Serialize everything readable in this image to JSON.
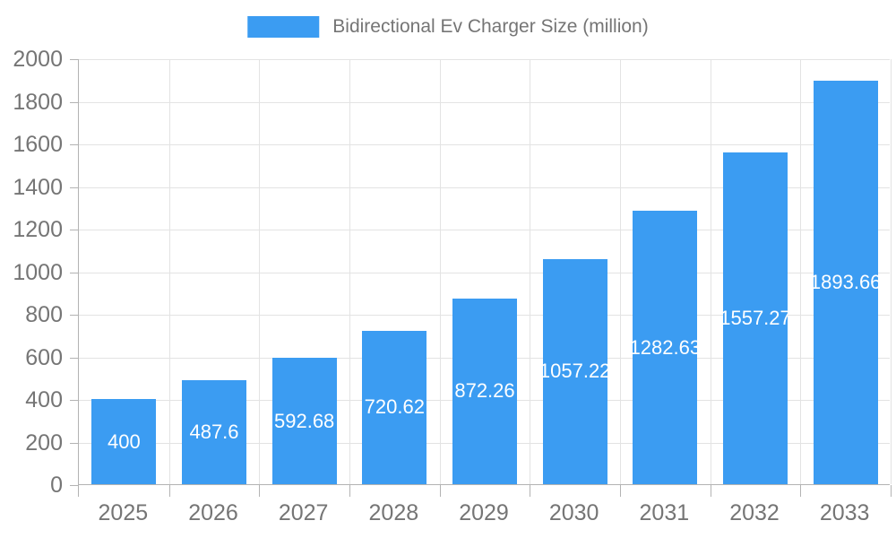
{
  "legend": {
    "label": "Bidirectional Ev Charger Size (million)"
  },
  "chart_data": {
    "type": "bar",
    "title": "",
    "legend_entries": [
      "Bidirectional Ev Charger Size (million)"
    ],
    "legend_position": "top",
    "categories": [
      "2025",
      "2026",
      "2027",
      "2028",
      "2029",
      "2030",
      "2031",
      "2032",
      "2033"
    ],
    "values": [
      400,
      487.6,
      592.68,
      720.62,
      872.26,
      1057.22,
      1282.63,
      1557.27,
      1893.66
    ],
    "value_labels": [
      "400",
      "487.6",
      "592.68",
      "720.62",
      "872.26",
      "1057.22",
      "1282.63",
      "1557.27",
      "1893.66"
    ],
    "xlabel": "",
    "ylabel": "",
    "ylim": [
      0,
      2000
    ],
    "ytick_step": 200,
    "yticks": [
      0,
      200,
      400,
      600,
      800,
      1000,
      1200,
      1400,
      1600,
      1800,
      2000
    ],
    "grid": true,
    "colors": {
      "bar": "#3B9CF2",
      "bar_value_label": "#FFFFFF",
      "axis_text": "#757575",
      "grid_line": "#E3E3E3",
      "axis_line": "#B3B3B3",
      "background": "#FFFFFF"
    }
  }
}
